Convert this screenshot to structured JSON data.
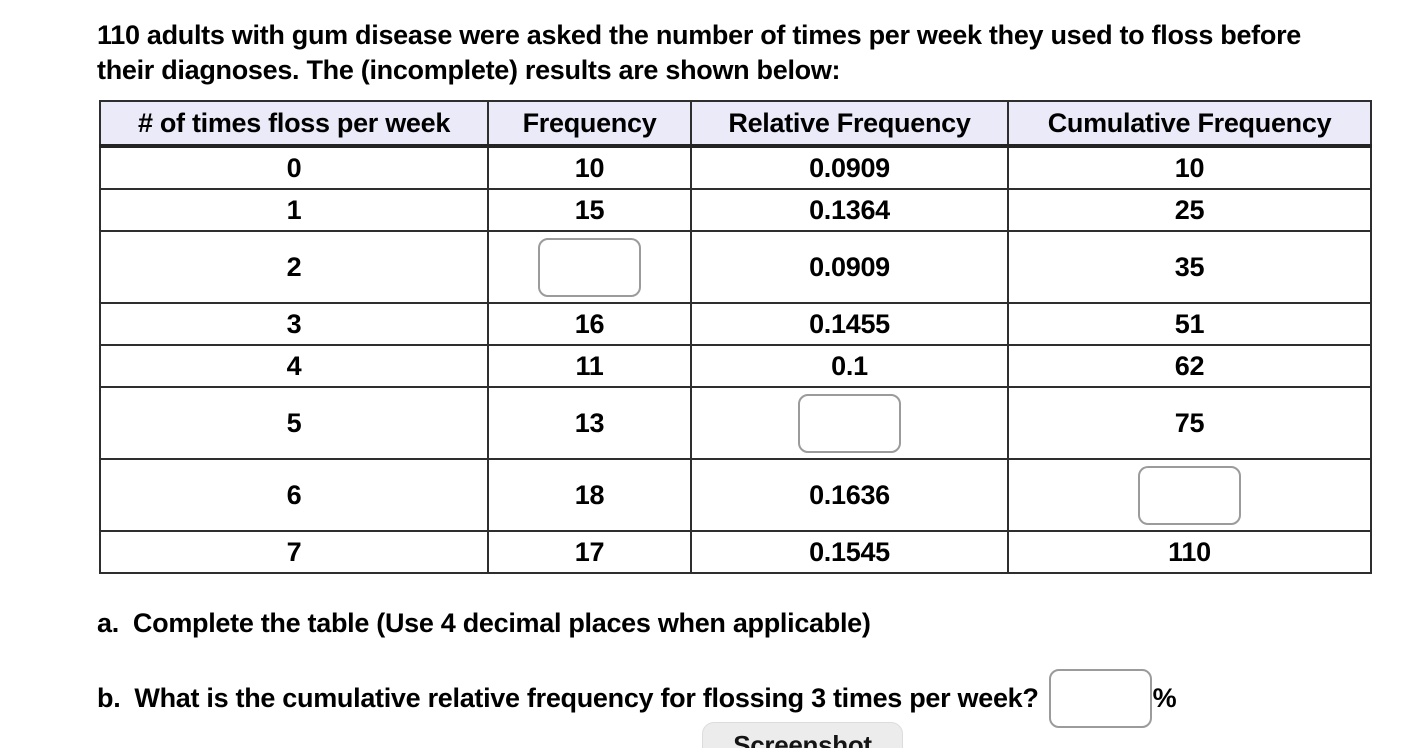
{
  "problem": {
    "intro_line1": "110 adults with gum disease were asked the number of times per week they used to floss before",
    "intro_line2": "their diagnoses. The (incomplete) results are shown below:"
  },
  "table": {
    "headers": [
      "# of times floss per week",
      "Frequency",
      "Relative Frequency",
      "Cumulative Frequency"
    ],
    "rows": [
      [
        "0",
        "10",
        "0.0909",
        "10"
      ],
      [
        "1",
        "15",
        "0.1364",
        "25"
      ],
      [
        "2",
        "",
        "0.0909",
        "35"
      ],
      [
        "3",
        "16",
        "0.1455",
        "51"
      ],
      [
        "4",
        "11",
        "0.1",
        "62"
      ],
      [
        "5",
        "13",
        "",
        "75"
      ],
      [
        "6",
        "18",
        "0.1636",
        ""
      ],
      [
        "7",
        "17",
        "0.1545",
        "110"
      ]
    ]
  },
  "questions": {
    "a_label": "a.",
    "a_text": "Complete the table (Use 4 decimal places when applicable)",
    "b_label": "b.",
    "b_text": "What is the cumulative relative frequency for flossing 3 times per week?",
    "b_unit": "%",
    "b_input_value": ""
  },
  "footer": {
    "screenshot_button_label": "Screenshot"
  },
  "colors": {
    "header_bg": "#eaeaf8",
    "table_border": "#2e2e2e",
    "input_border": "#9b9b9b",
    "button_bg": "#ececec"
  }
}
